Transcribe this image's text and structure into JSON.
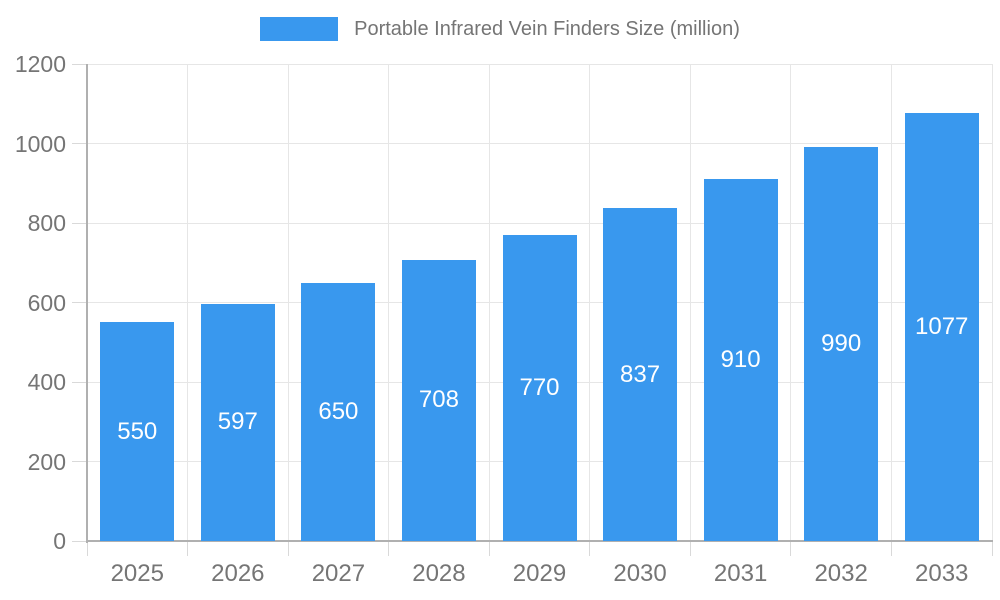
{
  "chart_data": {
    "type": "bar",
    "title": "",
    "legend": "Portable Infrared Vein Finders Size (million)",
    "legend_position": "top",
    "categories": [
      "2025",
      "2026",
      "2027",
      "2028",
      "2029",
      "2030",
      "2031",
      "2032",
      "2033"
    ],
    "values": [
      550,
      597,
      650,
      708,
      770,
      837,
      910,
      990,
      1077
    ],
    "xlabel": "",
    "ylabel": "",
    "ylim": [
      0,
      1200
    ],
    "yticks": [
      0,
      200,
      400,
      600,
      800,
      1000,
      1200
    ],
    "grid": true,
    "value_labels": "inside-center"
  },
  "style": {
    "bar_color": "#3998ee",
    "value_label_color": "#ffffff",
    "axis_text_color": "#757575",
    "legend_text_color": "#757575",
    "grid_color": "#e6e6e6",
    "axis_line_color": "#b0b0b0",
    "tick_color": "#d9d9d9",
    "background": "#ffffff"
  }
}
